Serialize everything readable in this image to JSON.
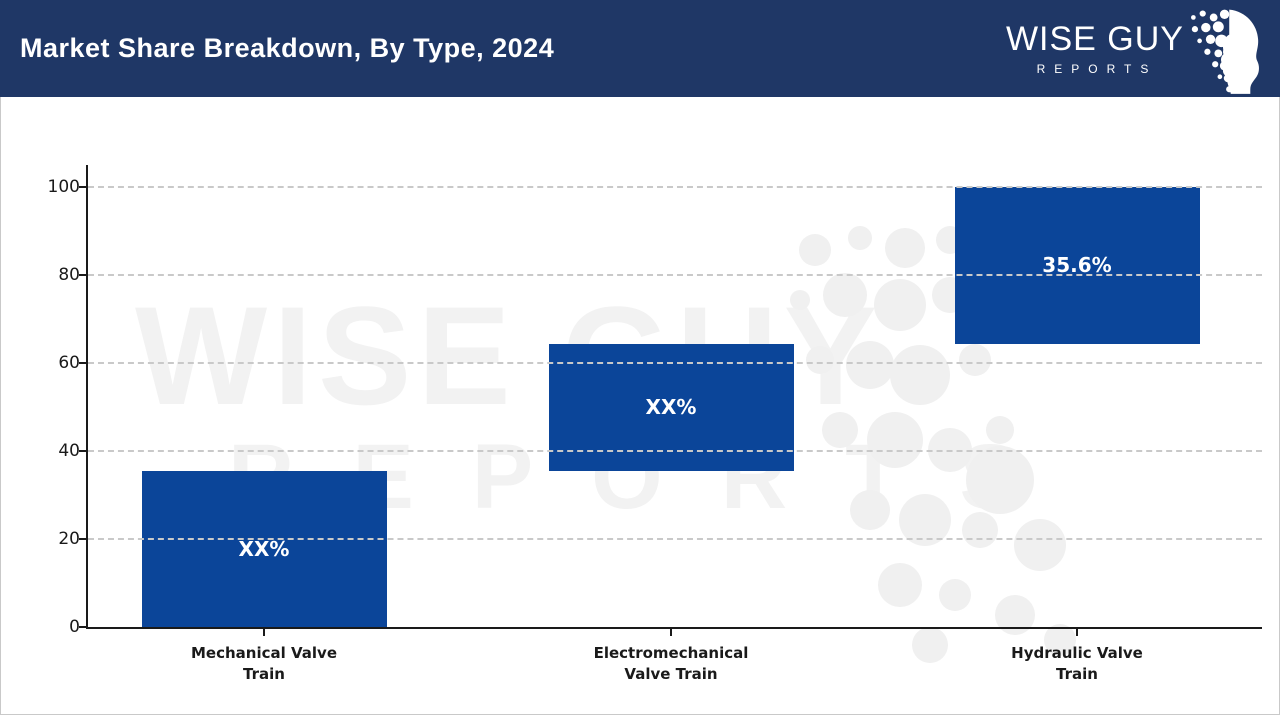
{
  "header": {
    "title": "Market Share Breakdown, By Type, 2024",
    "bg_color": "#1f3766",
    "logo": {
      "line1": "WISE GUY",
      "line2": "REPORTS"
    }
  },
  "watermark": {
    "line1": "WISE GUY",
    "line2": "REPORTS"
  },
  "chart_data": {
    "type": "bar",
    "subtype": "waterfall",
    "title": "Market Share Breakdown, By Type, 2024",
    "categories": [
      {
        "lines": [
          "Mechanical Valve",
          "Train"
        ]
      },
      {
        "lines": [
          "Electromechanical",
          "Valve Train"
        ]
      },
      {
        "lines": [
          "Hydraulic Valve",
          "Train"
        ]
      }
    ],
    "segments": [
      {
        "start": 0,
        "end": 35.4,
        "label": "XX%"
      },
      {
        "start": 35.4,
        "end": 64.4,
        "label": "XX%"
      },
      {
        "start": 64.4,
        "end": 100,
        "label": "35.6%"
      }
    ],
    "yticks": [
      0,
      20,
      40,
      60,
      80,
      100
    ],
    "ylim": [
      0,
      105
    ],
    "xlabel": "",
    "ylabel": "",
    "bar_color": "#0b4599",
    "grid": "horizontal-dashed",
    "legend": "none"
  }
}
